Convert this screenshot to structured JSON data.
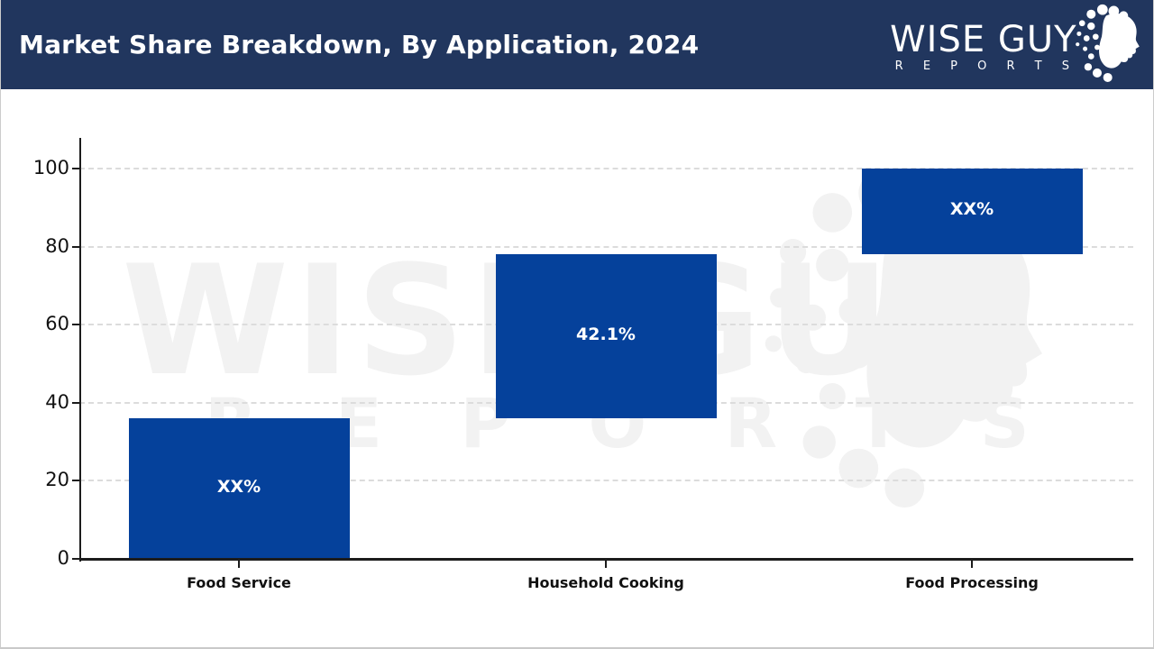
{
  "header": {
    "title": "Market Share Breakdown, By Application, 2024",
    "logo": {
      "line1": "WISE GUY",
      "line2": "R E P O R T S"
    }
  },
  "watermark": {
    "line1": "WISE GUY",
    "line2": "R E P O R T S"
  },
  "colors": {
    "header_bg": "#21365E",
    "bar_fill": "#05419B",
    "grid": "#dcdcdc",
    "axis": "#1c1c1c",
    "bar_label_text": "#ffffff",
    "watermark": "#f2f2f2"
  },
  "chart_data": {
    "type": "bar",
    "variant": "floating-waterfall-breakdown",
    "title": "Market Share Breakdown, By Application, 2024",
    "categories": [
      "Food Service",
      "Household Cooking",
      "Food Processing"
    ],
    "segments": [
      {
        "category": "Food Service",
        "start": 0,
        "end": 36,
        "label": "XX%"
      },
      {
        "category": "Household Cooking",
        "start": 36,
        "end": 78.1,
        "label": "42.1%"
      },
      {
        "category": "Food Processing",
        "start": 78.1,
        "end": 100,
        "label": "XX%"
      }
    ],
    "xlabel": "",
    "ylabel": "",
    "yticks": [
      0,
      20,
      40,
      60,
      80,
      100
    ],
    "ylim": [
      0,
      105
    ],
    "grid": "horizontal-dashed",
    "legend": "none"
  }
}
